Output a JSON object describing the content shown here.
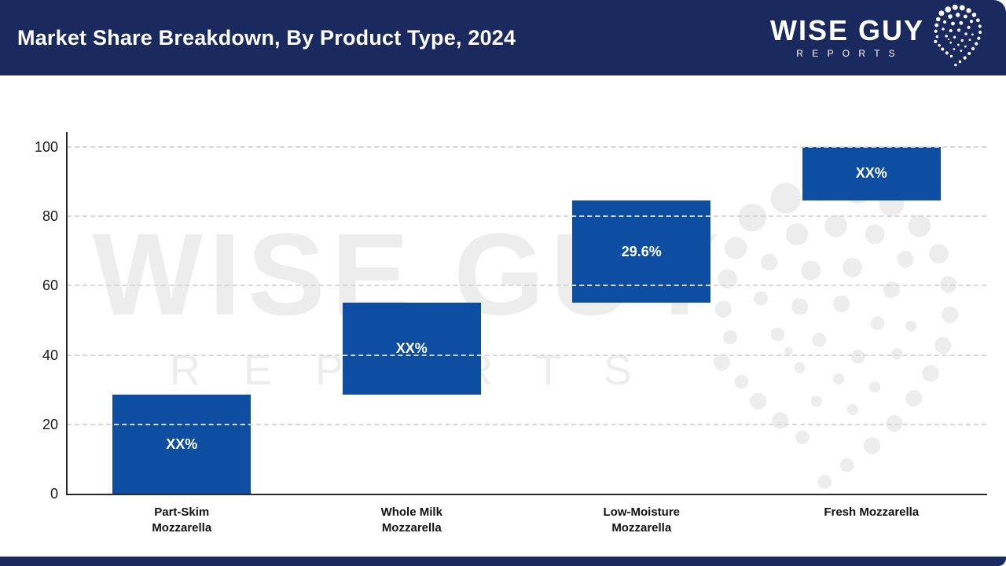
{
  "header": {
    "title": "Market Share Breakdown, By Product Type, 2024",
    "logo": {
      "line1": "WISE GUY",
      "line2": "R E P O R T S"
    },
    "bg_color": "#1b2a5e"
  },
  "watermark": {
    "line1": "WISE GUY",
    "line2": "R E P O R T S"
  },
  "chart_data": {
    "type": "bar",
    "subtype": "waterfall",
    "title": "Market Share Breakdown, By Product Type, 2024",
    "categories": [
      [
        "Part-Skim",
        "Mozzarella"
      ],
      [
        "Whole Milk",
        "Mozzarella"
      ],
      [
        "Low-Moisture",
        "Mozzarella"
      ],
      [
        "Fresh Mozzarella"
      ]
    ],
    "segments": [
      {
        "category": "Part-Skim Mozzarella",
        "start": 0,
        "end": 28.5,
        "label": "XX%"
      },
      {
        "category": "Whole Milk Mozzarella",
        "start": 28.5,
        "end": 55.0,
        "label": "XX%"
      },
      {
        "category": "Low-Moisture Mozzarella",
        "start": 55.0,
        "end": 84.6,
        "label": "29.6%"
      },
      {
        "category": "Fresh Mozzarella",
        "start": 84.6,
        "end": 100.0,
        "label": "XX%"
      }
    ],
    "ylim": [
      0,
      100
    ],
    "yticks": [
      0,
      20,
      40,
      60,
      80,
      100
    ],
    "grid": "horizontal-dashed",
    "legend": "none",
    "bar_color": "#0d4da2",
    "bar_label_color": "#ffffff",
    "axis_color": "#2b2b2b"
  }
}
